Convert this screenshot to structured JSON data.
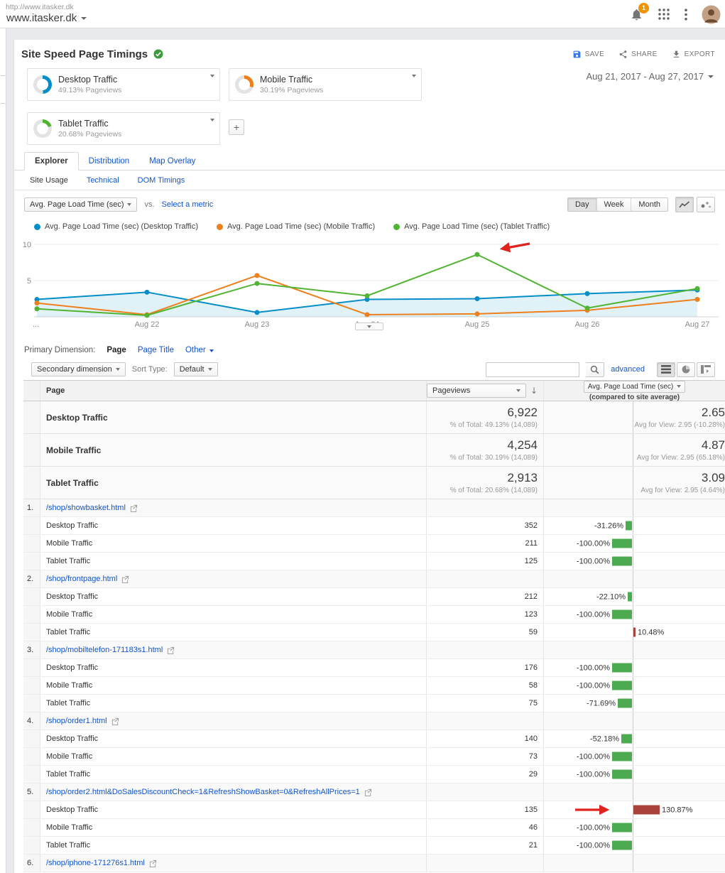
{
  "colors": {
    "desktop": "#058dc7",
    "mobile": "#ed801c",
    "tablet": "#50b432",
    "bar_negative": "#4cab50",
    "bar_positive": "#a8423a",
    "annotation": "#e0231c"
  },
  "topbar": {
    "url": "http://www.itasker.dk",
    "site_name": "www.itasker.dk",
    "notification_count": "1"
  },
  "report_header": {
    "title": "Site Speed Page Timings",
    "save": "SAVE",
    "share": "SHARE",
    "export": "EXPORT",
    "date_range": "Aug 21, 2017 - Aug 27, 2017"
  },
  "segments": [
    {
      "name": "Desktop Traffic",
      "detail": "49.13% Pageviews",
      "pct": 49.13,
      "color": "#058dc7"
    },
    {
      "name": "Mobile Traffic",
      "detail": "30.19% Pageviews",
      "pct": 30.19,
      "color": "#ed801c"
    },
    {
      "name": "Tablet Traffic",
      "detail": "20.68% Pageviews",
      "pct": 20.68,
      "color": "#50b432"
    }
  ],
  "tabs": [
    "Explorer",
    "Distribution",
    "Map Overlay"
  ],
  "subtabs": [
    "Site Usage",
    "Technical",
    "DOM Timings"
  ],
  "metric_toolbar": {
    "metric": "Avg. Page Load Time (sec)",
    "vs": "vs.",
    "select_metric": "Select a metric",
    "granularity": [
      "Day",
      "Week",
      "Month"
    ]
  },
  "chart_data": {
    "type": "line",
    "x": [
      "Aug 21",
      "Aug 22",
      "Aug 23",
      "Aug 24",
      "Aug 25",
      "Aug 26",
      "Aug 27"
    ],
    "x_tick_labels": [
      "...",
      "Aug 22",
      "Aug 23",
      "Aug 24",
      "Aug 25",
      "Aug 26",
      "Aug 27"
    ],
    "ylim": [
      0,
      10
    ],
    "yticks": [
      5,
      10
    ],
    "grid": "horizontal",
    "legend_position": "top",
    "series": [
      {
        "name": "Avg. Page Load Time (sec) (Desktop Traffic)",
        "color": "#058dc7",
        "area": true,
        "values": [
          2.4,
          3.4,
          0.6,
          2.4,
          2.5,
          3.2,
          3.7
        ]
      },
      {
        "name": "Avg. Page Load Time (sec) (Mobile Traffic)",
        "color": "#ed801c",
        "values": [
          1.9,
          0.3,
          5.7,
          0.3,
          0.4,
          0.9,
          2.4
        ]
      },
      {
        "name": "Avg. Page Load Time (sec) (Tablet Traffic)",
        "color": "#50b432",
        "values": [
          1.1,
          0.2,
          4.6,
          2.9,
          8.6,
          1.2,
          3.9
        ]
      }
    ]
  },
  "primary_dimension": {
    "label": "Primary Dimension:",
    "selected": "Page",
    "options": [
      "Page Title",
      "Other"
    ]
  },
  "table_toolbar": {
    "secondary_dimension": "Secondary dimension",
    "sort_type_label": "Sort Type:",
    "sort_type": "Default",
    "advanced": "advanced"
  },
  "table": {
    "columns": {
      "page": "Page",
      "pageviews": "Pageviews",
      "metric": "Avg. Page Load Time (sec)",
      "metric_note": "(compared to site average)"
    },
    "summary": [
      {
        "name": "Desktop Traffic",
        "pageviews": "6,922",
        "pageviews_note": "% of Total: 49.13% (14,089)",
        "metric": "2.65",
        "metric_note": "Avg for View: 2.95 (-10.28%)"
      },
      {
        "name": "Mobile Traffic",
        "pageviews": "4,254",
        "pageviews_note": "% of Total: 30.19% (14,089)",
        "metric": "4.87",
        "metric_note": "Avg for View: 2.95 (65.18%)"
      },
      {
        "name": "Tablet Traffic",
        "pageviews": "2,913",
        "pageviews_note": "% of Total: 20.68% (14,089)",
        "metric": "3.09",
        "metric_note": "Avg for View: 2.95 (4.64%)"
      }
    ],
    "rows": [
      {
        "index": "1.",
        "url": "/shop/showbasket.html",
        "segments": [
          {
            "name": "Desktop Traffic",
            "pageviews": "352",
            "delta": -31.26,
            "delta_label": "-31.26%"
          },
          {
            "name": "Mobile Traffic",
            "pageviews": "211",
            "delta": -100,
            "delta_label": "-100.00%"
          },
          {
            "name": "Tablet Traffic",
            "pageviews": "125",
            "delta": -100,
            "delta_label": "-100.00%"
          }
        ]
      },
      {
        "index": "2.",
        "url": "/shop/frontpage.html",
        "segments": [
          {
            "name": "Desktop Traffic",
            "pageviews": "212",
            "delta": -22.1,
            "delta_label": "-22.10%"
          },
          {
            "name": "Mobile Traffic",
            "pageviews": "123",
            "delta": -100,
            "delta_label": "-100.00%"
          },
          {
            "name": "Tablet Traffic",
            "pageviews": "59",
            "delta": 10.48,
            "delta_label": "10.48%"
          }
        ]
      },
      {
        "index": "3.",
        "url": "/shop/mobiltelefon-171183s1.html",
        "segments": [
          {
            "name": "Desktop Traffic",
            "pageviews": "176",
            "delta": -100,
            "delta_label": "-100.00%"
          },
          {
            "name": "Mobile Traffic",
            "pageviews": "58",
            "delta": -100,
            "delta_label": "-100.00%"
          },
          {
            "name": "Tablet Traffic",
            "pageviews": "75",
            "delta": -71.69,
            "delta_label": "-71.69%"
          }
        ]
      },
      {
        "index": "4.",
        "url": "/shop/order1.html",
        "segments": [
          {
            "name": "Desktop Traffic",
            "pageviews": "140",
            "delta": -52.18,
            "delta_label": "-52.18%"
          },
          {
            "name": "Mobile Traffic",
            "pageviews": "73",
            "delta": -100,
            "delta_label": "-100.00%"
          },
          {
            "name": "Tablet Traffic",
            "pageviews": "29",
            "delta": -100,
            "delta_label": "-100.00%"
          }
        ]
      },
      {
        "index": "5.",
        "url": "/shop/order2.html&DoSalesDiscountCheck=1&RefreshShowBasket=0&RefreshAllPrices=1",
        "segments": [
          {
            "name": "Desktop Traffic",
            "pageviews": "135",
            "delta": 130.87,
            "delta_label": "130.87%",
            "annotated": true
          },
          {
            "name": "Mobile Traffic",
            "pageviews": "46",
            "delta": -100,
            "delta_label": "-100.00%"
          },
          {
            "name": "Tablet Traffic",
            "pageviews": "21",
            "delta": -100,
            "delta_label": "-100.00%"
          }
        ]
      },
      {
        "index": "6.",
        "url": "/shop/iphone-171276s1.html",
        "segments": []
      }
    ]
  }
}
